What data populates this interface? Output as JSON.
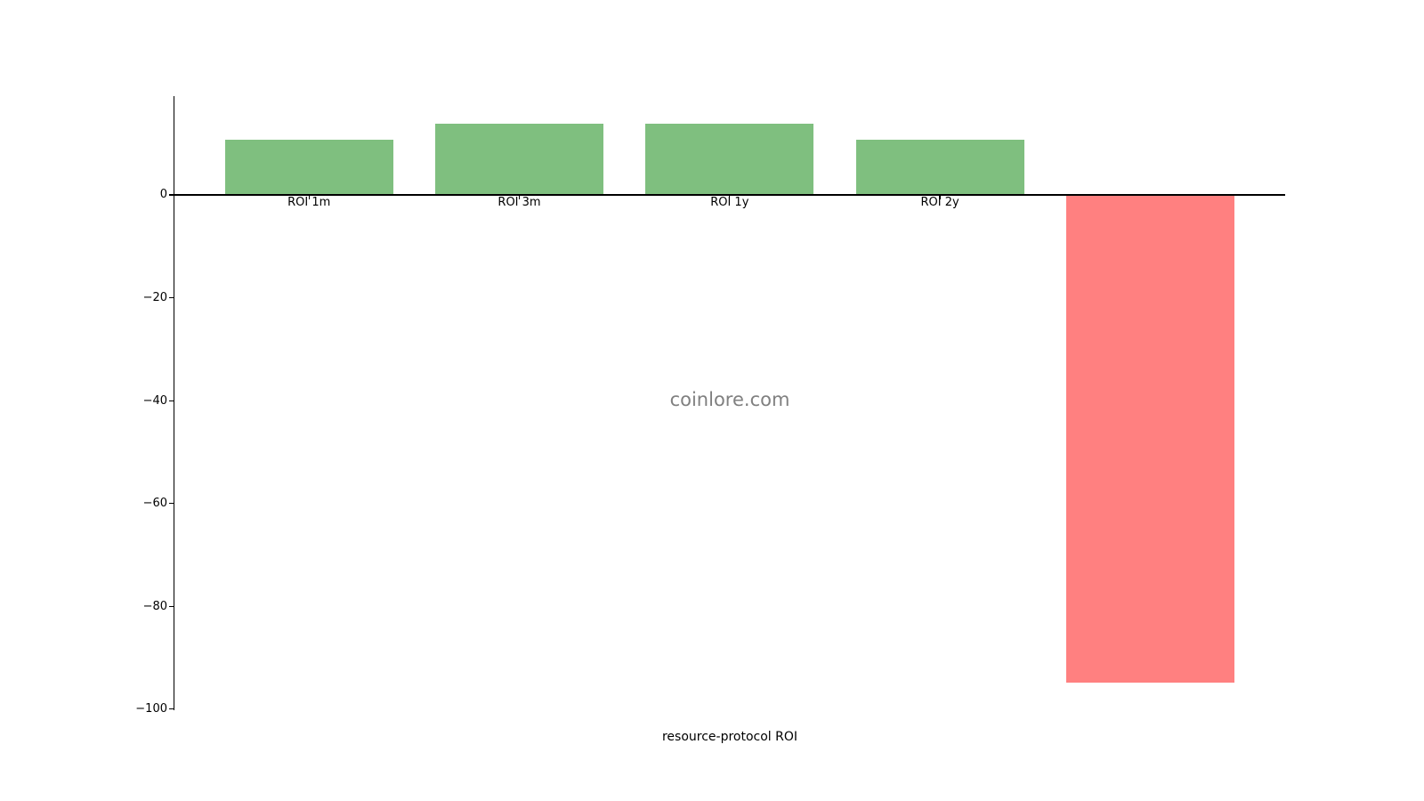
{
  "chart_data": {
    "type": "bar",
    "title": "",
    "xlabel": "resource-protocol ROI",
    "ylabel": "",
    "watermark": "coinlore.com",
    "categories": [
      "ROI 1m",
      "ROI 3m",
      "ROI 1y",
      "ROI 2y",
      ""
    ],
    "values": [
      10.7,
      13.8,
      13.8,
      10.7,
      -94.8
    ],
    "bar_width": 0.8,
    "xlim": [
      -0.64,
      4.64
    ],
    "ylim": [
      -100.2,
      19.2
    ],
    "yticks": [
      0,
      -20,
      -40,
      -60,
      -80,
      -100
    ],
    "ytick_labels": [
      "0",
      "−20",
      "−40",
      "−60",
      "−80",
      "−100"
    ],
    "grid": false,
    "legend": null,
    "colors": {
      "positive": "#7fbf7f",
      "negative": "#ff8080",
      "axis": "#000000",
      "tick_label": "#000000",
      "watermark": "#808080"
    }
  }
}
